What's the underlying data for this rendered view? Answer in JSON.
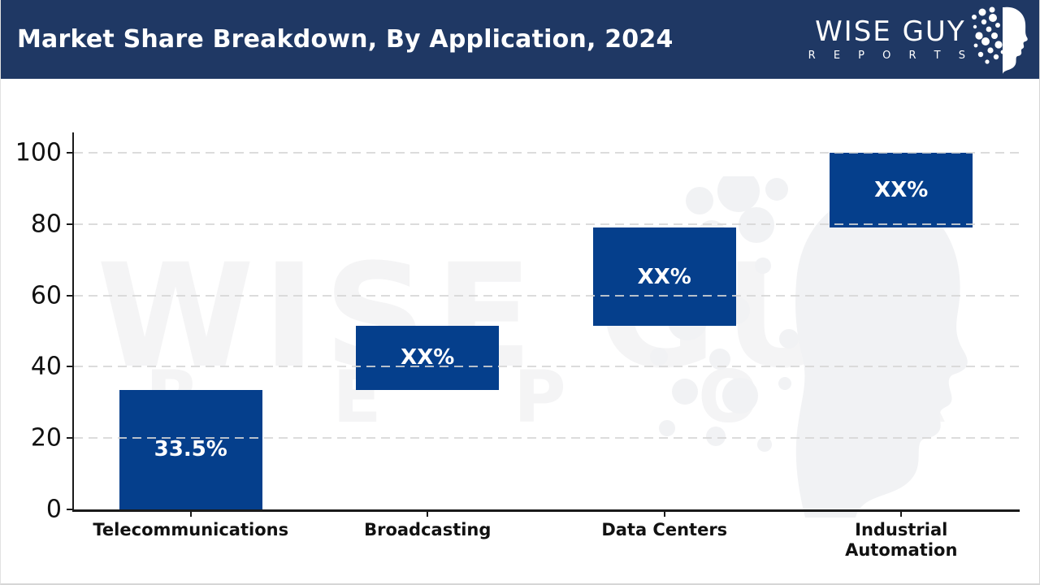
{
  "header": {
    "title": "Market Share Breakdown, By Application, 2024",
    "bg_color": "#1f3864",
    "logo": {
      "line1": "WISE GUY",
      "line2": "R E P O R T S"
    }
  },
  "chart_data": {
    "type": "bar",
    "subtype": "floating-waterfall",
    "title": "Market Share Breakdown, By Application, 2024",
    "xlabel": "",
    "ylabel": "",
    "ylim": [
      0,
      107
    ],
    "yticks": [
      0,
      20,
      40,
      60,
      80,
      100
    ],
    "grid": "horizontal-dashed",
    "legend": "none",
    "bar_color": "#053f8c",
    "categories": [
      "Telecommunications",
      "Broadcasting",
      "Data Centers",
      "Industrial Automation"
    ],
    "category_label_lines": [
      [
        "Telecommunications"
      ],
      [
        "Broadcasting"
      ],
      [
        "Data Centers"
      ],
      [
        "Industrial",
        "Automation"
      ]
    ],
    "segments": [
      {
        "category": "Telecommunications",
        "start": 0,
        "end": 33.5,
        "label": "33.5%"
      },
      {
        "category": "Broadcasting",
        "start": 33.5,
        "end": 51.5,
        "label": "XX%"
      },
      {
        "category": "Data Centers",
        "start": 51.5,
        "end": 79,
        "label": "XX%"
      },
      {
        "category": "Industrial Automation",
        "start": 79,
        "end": 100,
        "label": "XX%"
      }
    ],
    "watermark": {
      "line1": "WISE GUY",
      "line2": "R E P O R T S"
    }
  }
}
